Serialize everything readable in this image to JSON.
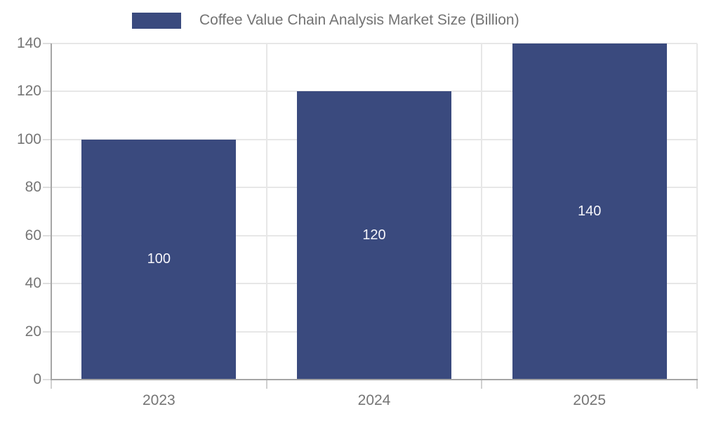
{
  "chart_data": {
    "type": "bar",
    "title": "Coffee Value Chain Analysis Market Size (Billion)",
    "categories": [
      "2023",
      "2024",
      "2025"
    ],
    "values": [
      100,
      120,
      140
    ],
    "data_labels": [
      "100",
      "120",
      "140"
    ],
    "yticks": [
      0,
      20,
      40,
      60,
      80,
      100,
      120,
      140
    ],
    "ylim": [
      0,
      140
    ],
    "xlabel": "",
    "ylabel": "",
    "grid": true,
    "legend_position": "top",
    "data_label_position": "inside-center",
    "colors": {
      "bar": "#3A4A7E",
      "data_label": "#F5F5FA",
      "axis_line": "#A6A6A6",
      "gridline": "#E7E7E7",
      "axis_text": "#757575",
      "legend_text": "#737373"
    }
  }
}
